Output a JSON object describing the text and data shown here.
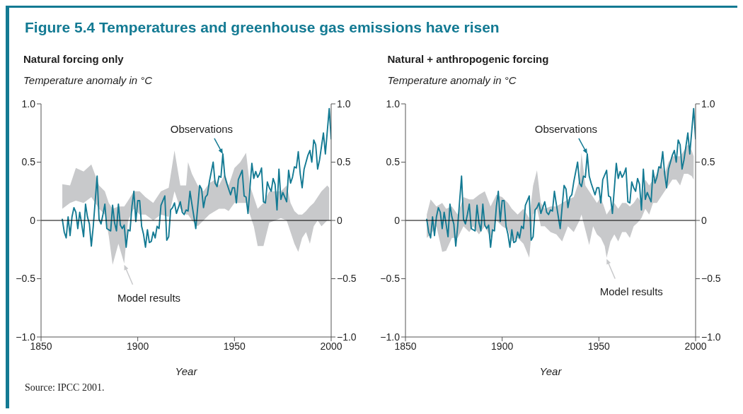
{
  "chart_data": [
    {
      "type": "line",
      "title": "Figure 5.4  Temperatures and greenhouse gas emissions have risen",
      "subtitle": "Natural forcing only",
      "ylabel": "Temperature anomaly in °C",
      "xlabel": "Year",
      "xlim": [
        1850,
        2000
      ],
      "xticks": [
        1850,
        1900,
        1950,
        2000
      ],
      "ylim": [
        -1,
        1
      ],
      "yticks": [
        {
          "value": -1,
          "label": "−1.0"
        },
        {
          "value": -0.5,
          "label": "−0.5"
        },
        0,
        {
          "value": 0.5,
          "label": "0.5"
        },
        {
          "value": 1,
          "label": "1.0"
        }
      ],
      "y2lim": [
        -1,
        1
      ],
      "y2ticks": [
        {
          "value": -1,
          "label": "−1.0"
        },
        {
          "value": -0.5,
          "label": "−0.5"
        },
        0,
        {
          "value": 0.5,
          "label": "0.5"
        },
        {
          "value": 1,
          "label": "1.0"
        }
      ],
      "ref_lines": [
        {
          "axis": "y",
          "value": 0,
          "color": "#000000"
        }
      ],
      "annotations": [
        {
          "text": "Observations",
          "x": 1944,
          "y": 0.57
        },
        {
          "text": "Model results",
          "x": 1893,
          "y": -0.38
        }
      ],
      "series": [
        {
          "color": "#137a93",
          "x": [
            1861,
            1862,
            1863,
            1864,
            1865,
            1866,
            1867,
            1868,
            1869,
            1870,
            1871,
            1872,
            1873,
            1874,
            1875,
            1876,
            1877,
            1879,
            1880,
            1881,
            1882,
            1883,
            1884,
            1885,
            1886,
            1887,
            1888,
            1889,
            1890,
            1891,
            1892,
            1893,
            1894,
            1895,
            1896,
            1897,
            1898,
            1899,
            1900,
            1901,
            1902,
            1903,
            1904,
            1905,
            1906,
            1907,
            1908,
            1909,
            1910,
            1911,
            1912,
            1914,
            1915,
            1916,
            1917,
            1918,
            1919,
            1920,
            1922,
            1923,
            1924,
            1925,
            1926,
            1927,
            1928,
            1930,
            1932,
            1933,
            1934,
            1935,
            1936,
            1937,
            1939,
            1940,
            1941,
            1942,
            1943,
            1944,
            1945,
            1946,
            1948,
            1949,
            1950,
            1951,
            1952,
            1954,
            1955,
            1956,
            1957,
            1959,
            1960,
            1961,
            1962,
            1963,
            1964,
            1965,
            1966,
            1967,
            1968,
            1969,
            1970,
            1971,
            1972,
            1973,
            1974,
            1975,
            1977,
            1978,
            1979,
            1980,
            1981,
            1982,
            1983,
            1984,
            1985,
            1986,
            1988,
            1989,
            1990,
            1991,
            1992,
            1993,
            1994,
            1996,
            1997,
            1999,
            2000
          ],
          "values": [
            0.01,
            -0.1,
            -0.15,
            0.03,
            -0.13,
            0.03,
            0.11,
            0.07,
            -0.07,
            0.07,
            -0.03,
            -0.14,
            0.14,
            0.03,
            -0.03,
            -0.22,
            -0.05,
            0.38,
            0.01,
            -0.03,
            0.05,
            0.14,
            -0.07,
            -0.08,
            -0.09,
            0.13,
            -0.02,
            -0.09,
            0.14,
            -0.04,
            -0.07,
            -0.04,
            -0.23,
            -0.08,
            -0.09,
            0.12,
            0.25,
            -0.01,
            0.17,
            0.17,
            -0.05,
            -0.12,
            -0.23,
            -0.08,
            -0.19,
            -0.18,
            -0.1,
            -0.15,
            -0.05,
            -0.07,
            0.13,
            0.21,
            -0.17,
            -0.14,
            0.09,
            0.11,
            0.15,
            0.06,
            0.16,
            0.07,
            0.05,
            0.09,
            0.08,
            0.25,
            0.14,
            -0.07,
            0.3,
            0.27,
            0.11,
            0.2,
            0.22,
            0.33,
            0.5,
            0.32,
            0.29,
            0.38,
            0.37,
            0.57,
            0.38,
            0.32,
            0.22,
            0.28,
            0.28,
            0.15,
            0.35,
            0.43,
            0.21,
            0.2,
            0.06,
            0.49,
            0.36,
            0.42,
            0.37,
            0.4,
            0.45,
            0.16,
            0.15,
            0.33,
            0.28,
            0.25,
            0.36,
            0.31,
            0.09,
            0.44,
            0.18,
            0.24,
            0.16,
            0.43,
            0.32,
            0.37,
            0.46,
            0.45,
            0.59,
            0.4,
            0.28,
            0.44,
            0.56,
            0.6,
            0.5,
            0.69,
            0.65,
            0.44,
            0.52,
            0.75,
            0.57,
            0.96,
            0.7
          ]
        },
        {
          "type": "area",
          "color": "#c8c9cb",
          "values": [
            null,
            null,
            null,
            null,
            null,
            null,
            null,
            null,
            null,
            null,
            null,
            null,
            null,
            null,
            null,
            null,
            null,
            null,
            null,
            null,
            null,
            null,
            null,
            null,
            null,
            null,
            null,
            null,
            null,
            null,
            null,
            null,
            null,
            null,
            null,
            null,
            null,
            null,
            null,
            null,
            null,
            null,
            null,
            null,
            null,
            null,
            null,
            null,
            null,
            null,
            null,
            null
          ],
          "x": [
            1861,
            1865,
            1868,
            1872,
            1876,
            1880,
            1883,
            1885,
            1887,
            1890,
            1893,
            1895,
            1898,
            1901,
            1904,
            1908,
            1912,
            1916,
            1919,
            1922,
            1925,
            1926,
            1928,
            1931,
            1934,
            1937,
            1940,
            1942,
            1945,
            1947,
            1950,
            1953,
            1956,
            1958,
            1960,
            1962,
            1965,
            1968,
            1971,
            1974,
            1977,
            1979,
            1981,
            1983,
            1985,
            1987,
            1989,
            1991,
            1993,
            1995,
            1998,
            1999
          ],
          "lower": [
            0.1,
            0.15,
            0.17,
            0.15,
            0.2,
            0.1,
            0.05,
            -0.13,
            -0.38,
            -0.2,
            -0.37,
            0.0,
            0.1,
            0.05,
            0.05,
            0.0,
            0.05,
            0.03,
            0.25,
            0.1,
            0.05,
            0.05,
            0.0,
            -0.05,
            0.0,
            0.05,
            0.08,
            0.1,
            0.1,
            0.08,
            0.15,
            0.15,
            0.15,
            0.05,
            -0.05,
            -0.22,
            -0.22,
            -0.02,
            0.0,
            0.02,
            0.0,
            -0.1,
            -0.2,
            -0.27,
            -0.15,
            -0.1,
            -0.2,
            -0.05,
            0.0,
            -0.05,
            0.0,
            0.0
          ],
          "upper": [
            0.31,
            0.3,
            0.45,
            0.42,
            0.48,
            0.3,
            0.25,
            0.15,
            0.1,
            0.12,
            0.12,
            0.17,
            0.25,
            0.25,
            0.2,
            0.15,
            0.25,
            0.28,
            0.6,
            0.3,
            0.3,
            0.5,
            0.4,
            0.3,
            0.25,
            0.32,
            0.35,
            0.3,
            0.4,
            0.3,
            0.45,
            0.5,
            0.58,
            0.3,
            0.2,
            0.1,
            0.15,
            0.25,
            0.25,
            0.25,
            0.3,
            0.15,
            0.08,
            0.05,
            0.05,
            0.08,
            0.12,
            0.15,
            0.2,
            0.25,
            0.3,
            0.28
          ]
        }
      ]
    },
    {
      "type": "line",
      "subtitle": "Natural + anthropogenic forcing",
      "ylabel": "Temperature anomaly in °C",
      "xlabel": "Year",
      "xlim": [
        1850,
        2000
      ],
      "xticks": [
        1850,
        1900,
        1950,
        2000
      ],
      "ylim": [
        -1,
        1
      ],
      "yticks": [
        {
          "value": -1,
          "label": "−1.0"
        },
        {
          "value": -0.5,
          "label": "−0.5"
        },
        0,
        {
          "value": 0.5,
          "label": "0.5"
        },
        {
          "value": 1,
          "label": "1.0"
        }
      ],
      "y2lim": [
        -1,
        1
      ],
      "y2ticks": [
        {
          "value": -1,
          "label": "−1.0"
        },
        {
          "value": -0.5,
          "label": "−0.5"
        },
        0,
        {
          "value": 0.5,
          "label": "0.5"
        },
        {
          "value": 1,
          "label": "1.0"
        }
      ],
      "ref_lines": [
        {
          "axis": "y",
          "value": 0,
          "color": "#000000"
        }
      ],
      "annotations": [
        {
          "text": "Observations",
          "x": 1944,
          "y": 0.57
        },
        {
          "text": "Model results",
          "x": 1954,
          "y": -0.33
        },
        "Source: IPCC 2001."
      ],
      "series": [
        {
          "color": "#137a93",
          "x": [
            1861,
            1862,
            1863,
            1864,
            1865,
            1866,
            1867,
            1868,
            1869,
            1870,
            1871,
            1872,
            1873,
            1874,
            1875,
            1876,
            1877,
            1879,
            1880,
            1881,
            1882,
            1883,
            1884,
            1885,
            1886,
            1887,
            1888,
            1889,
            1890,
            1891,
            1892,
            1893,
            1894,
            1895,
            1896,
            1897,
            1898,
            1899,
            1900,
            1901,
            1902,
            1903,
            1904,
            1905,
            1906,
            1907,
            1908,
            1909,
            1910,
            1911,
            1912,
            1914,
            1915,
            1916,
            1917,
            1918,
            1919,
            1920,
            1922,
            1923,
            1924,
            1925,
            1926,
            1927,
            1928,
            1930,
            1932,
            1933,
            1934,
            1935,
            1936,
            1937,
            1939,
            1940,
            1941,
            1942,
            1943,
            1944,
            1945,
            1946,
            1948,
            1949,
            1950,
            1951,
            1952,
            1954,
            1955,
            1956,
            1957,
            1959,
            1960,
            1961,
            1962,
            1963,
            1964,
            1965,
            1966,
            1967,
            1968,
            1969,
            1970,
            1971,
            1972,
            1973,
            1974,
            1975,
            1977,
            1978,
            1979,
            1980,
            1981,
            1982,
            1983,
            1984,
            1985,
            1986,
            1988,
            1989,
            1990,
            1991,
            1992,
            1993,
            1994,
            1996,
            1997,
            1999,
            2000
          ],
          "values": [
            0.01,
            -0.1,
            -0.15,
            0.03,
            -0.13,
            0.03,
            0.11,
            0.07,
            -0.07,
            0.07,
            -0.03,
            -0.14,
            0.14,
            0.03,
            -0.03,
            -0.22,
            -0.05,
            0.38,
            0.01,
            -0.03,
            0.05,
            0.14,
            -0.07,
            -0.08,
            -0.09,
            0.13,
            -0.02,
            -0.09,
            0.14,
            -0.04,
            -0.07,
            -0.04,
            -0.23,
            -0.08,
            -0.09,
            0.12,
            0.25,
            -0.01,
            0.17,
            0.17,
            -0.05,
            -0.12,
            -0.23,
            -0.08,
            -0.19,
            -0.18,
            -0.1,
            -0.15,
            -0.05,
            -0.07,
            0.13,
            0.21,
            -0.17,
            -0.14,
            0.09,
            0.11,
            0.15,
            0.06,
            0.16,
            0.07,
            0.05,
            0.09,
            0.08,
            0.25,
            0.14,
            -0.07,
            0.3,
            0.27,
            0.11,
            0.2,
            0.22,
            0.33,
            0.5,
            0.32,
            0.29,
            0.38,
            0.37,
            0.57,
            0.38,
            0.32,
            0.22,
            0.28,
            0.28,
            0.15,
            0.35,
            0.43,
            0.21,
            0.2,
            0.06,
            0.49,
            0.36,
            0.42,
            0.37,
            0.4,
            0.45,
            0.16,
            0.15,
            0.33,
            0.28,
            0.25,
            0.36,
            0.31,
            0.09,
            0.44,
            0.18,
            0.24,
            0.16,
            0.43,
            0.32,
            0.37,
            0.46,
            0.45,
            0.59,
            0.4,
            0.28,
            0.44,
            0.56,
            0.6,
            0.5,
            0.69,
            0.65,
            0.44,
            0.52,
            0.75,
            0.57,
            0.96,
            0.7
          ]
        },
        {
          "type": "area",
          "color": "#c8c9cb",
          "values": [
            null,
            null,
            null,
            null,
            null,
            null,
            null,
            null,
            null,
            null,
            null,
            null,
            null,
            null,
            null,
            null,
            null,
            null,
            null,
            null,
            null,
            null,
            null,
            null,
            null,
            null,
            null,
            null,
            null,
            null,
            null,
            null,
            null,
            null,
            null,
            null,
            null,
            null,
            null,
            null,
            null,
            null,
            null,
            null,
            null,
            null,
            null,
            null,
            null,
            null,
            null,
            null,
            null,
            null,
            null,
            null,
            null,
            null,
            null,
            null,
            null
          ],
          "x": [
            1861,
            1863,
            1866,
            1869,
            1871,
            1874,
            1877,
            1880,
            1883,
            1885,
            1888,
            1891,
            1894,
            1897,
            1900,
            1903,
            1905,
            1908,
            1911,
            1914,
            1916,
            1918,
            1920,
            1922,
            1925,
            1928,
            1931,
            1934,
            1937,
            1940,
            1941,
            1943,
            1945,
            1947,
            1949,
            1951,
            1953,
            1954,
            1956,
            1958,
            1960,
            1962,
            1964,
            1966,
            1968,
            1970,
            1972,
            1974,
            1976,
            1978,
            1980,
            1982,
            1984,
            1986,
            1988,
            1990,
            1992,
            1994,
            1996,
            1998,
            1999
          ],
          "lower": [
            -0.15,
            -0.12,
            -0.05,
            -0.27,
            -0.26,
            -0.15,
            -0.15,
            -0.05,
            -0.1,
            -0.05,
            -0.12,
            -0.05,
            -0.15,
            0.0,
            -0.05,
            -0.08,
            -0.18,
            -0.15,
            -0.2,
            -0.32,
            0.05,
            0.1,
            -0.05,
            -0.05,
            -0.1,
            -0.12,
            -0.18,
            -0.05,
            -0.1,
            0.0,
            0.05,
            -0.08,
            -0.21,
            -0.05,
            -0.12,
            -0.15,
            -0.22,
            -0.32,
            -0.18,
            -0.12,
            -0.18,
            -0.1,
            -0.1,
            -0.15,
            -0.05,
            -0.02,
            0.02,
            0.1,
            0.05,
            0.15,
            0.15,
            0.2,
            0.25,
            0.3,
            0.35,
            0.35,
            0.3,
            0.4,
            0.4,
            0.38,
            0.35
          ],
          "upper": [
            0.05,
            0.18,
            0.12,
            0.15,
            0.1,
            0.12,
            0.05,
            0.2,
            0.18,
            0.18,
            0.22,
            0.25,
            0.12,
            0.22,
            0.2,
            0.15,
            0.1,
            0.05,
            0.1,
            0.02,
            0.3,
            0.43,
            0.15,
            0.1,
            0.12,
            0.12,
            0.15,
            0.18,
            0.2,
            0.35,
            0.58,
            0.3,
            0.25,
            0.2,
            0.15,
            0.2,
            0.1,
            0.05,
            0.1,
            0.15,
            0.1,
            0.15,
            0.15,
            0.12,
            0.15,
            0.2,
            0.15,
            0.35,
            0.3,
            0.35,
            0.4,
            0.5,
            0.4,
            0.5,
            0.55,
            0.55,
            0.55,
            0.6,
            0.65,
            0.6,
            0.55
          ]
        }
      ]
    }
  ]
}
